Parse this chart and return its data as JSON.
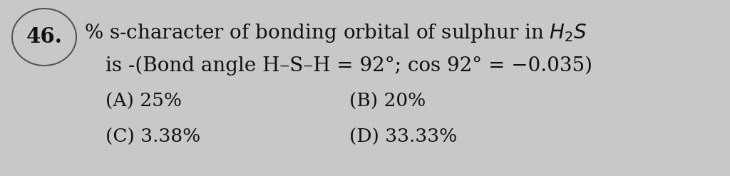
{
  "bg_color": "#c8c8c8",
  "question_number": "46.",
  "line1_before_sub": "% s-character of bonding orbital of sulphur in H",
  "line1_sub": "2",
  "line1_after_sub": "S",
  "line2": "is -(Bond angle H–S–H = 92°; cos 92° = −0.035)",
  "optA": "(A) 25%",
  "optB": "(B) 20%",
  "optC": "(C) 3.38%",
  "optD": "(D) 33.33%",
  "text_color": "#111111",
  "circle_color": "#555555",
  "font_size_main": 20,
  "font_size_sub": 14,
  "font_size_opts": 19
}
